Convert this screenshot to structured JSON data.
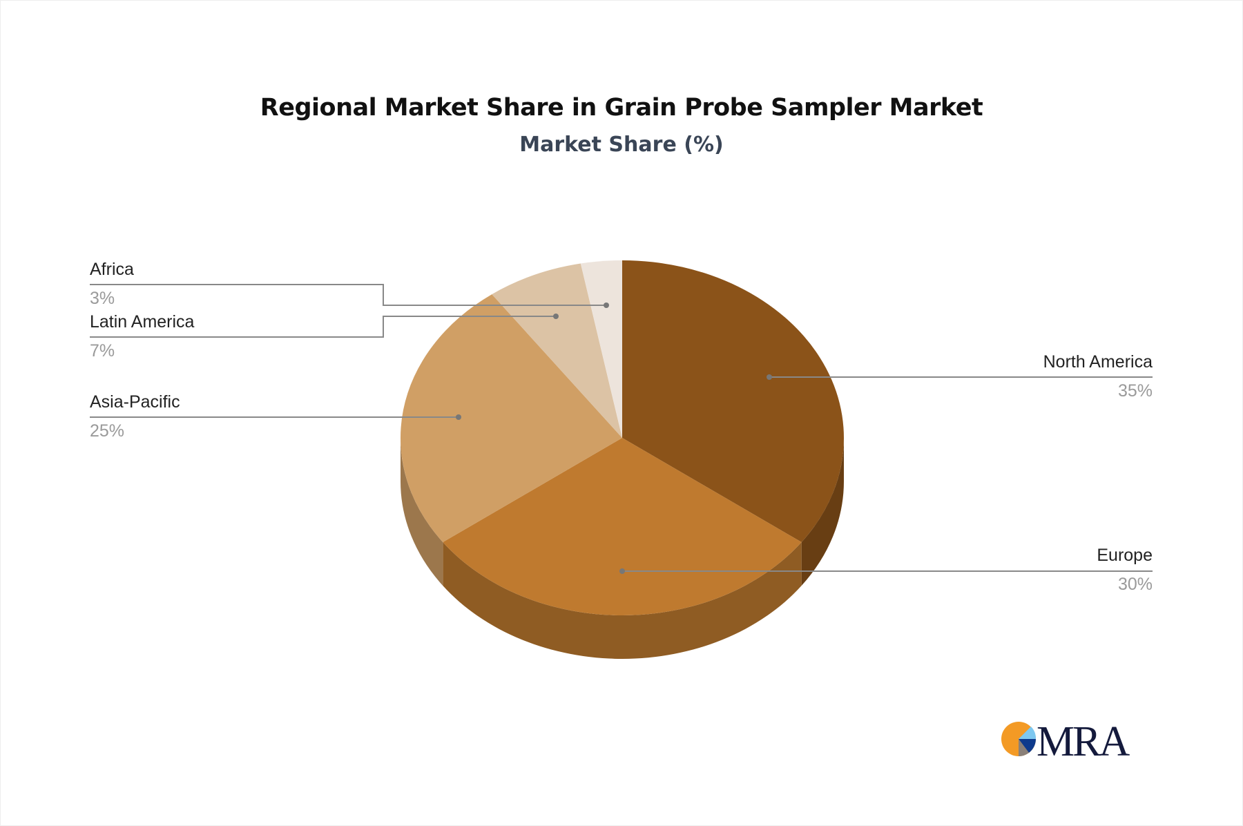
{
  "chart_data": {
    "type": "pie",
    "title": "Regional Market Share in Grain Probe Sampler Market",
    "subtitle": "Market Share (%)",
    "slices": [
      {
        "label": "North America",
        "value": 35,
        "display": "35%",
        "color": "#8B5319"
      },
      {
        "label": "Europe",
        "value": 30,
        "display": "30%",
        "color": "#BF7A2F"
      },
      {
        "label": "Asia-Pacific",
        "value": 25,
        "display": "25%",
        "color": "#D09F65"
      },
      {
        "label": "Latin America",
        "value": 7,
        "display": "7%",
        "color": "#DCC3A5"
      },
      {
        "label": "Africa",
        "value": 3,
        "display": "3%",
        "color": "#EDE4DC"
      }
    ],
    "style": "3d"
  },
  "logo": {
    "text": "MRA"
  }
}
